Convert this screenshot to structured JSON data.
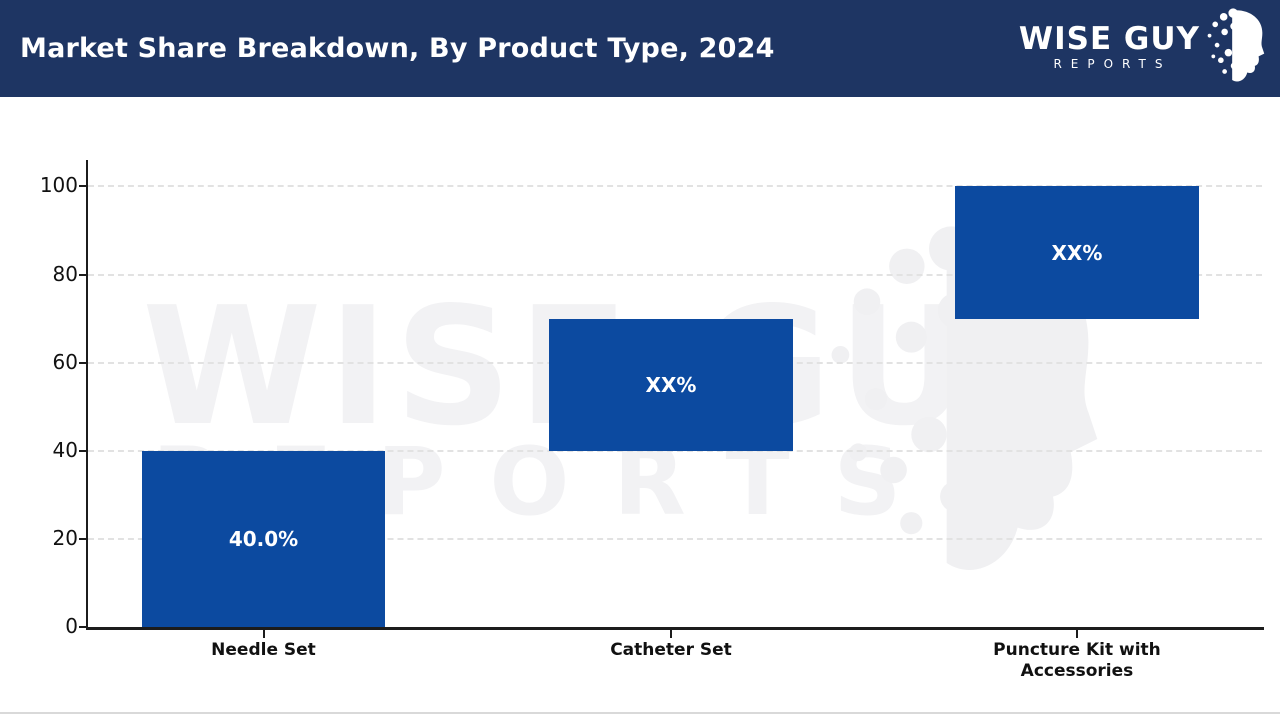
{
  "header": {
    "title": "Market Share Breakdown, By Product Type, 2024",
    "background_color": "#1e3563",
    "logo": {
      "line1": "WISE GUY",
      "line2": "REPORTS"
    }
  },
  "watermark": {
    "line1": "WISE GUY",
    "line2": "REPORTS"
  },
  "chart_data": {
    "type": "bar",
    "subtype": "floating-waterfall",
    "title": "Market Share Breakdown, By Product Type, 2024",
    "categories": [
      "Needle Set",
      "Catheter Set",
      "Puncture Kit with Accessories"
    ],
    "bars": [
      {
        "category": "Needle Set",
        "start": 0,
        "end": 40,
        "label": "40.0%"
      },
      {
        "category": "Catheter Set",
        "start": 40,
        "end": 70,
        "label": "XX%"
      },
      {
        "category": "Puncture Kit with Accessories",
        "start": 70,
        "end": 100,
        "label": "XX%"
      }
    ],
    "xlabel": "",
    "ylabel": "",
    "ylim": [
      0,
      106
    ],
    "yticks": [
      0,
      20,
      40,
      60,
      80,
      100
    ],
    "grid": "horizontal-dashed",
    "legend": "none",
    "bar_color": "#0c4aa0",
    "bar_label_color": "#ffffff",
    "axis_color": "#1c1c1c",
    "gridline_color": "#e2e2e2"
  }
}
